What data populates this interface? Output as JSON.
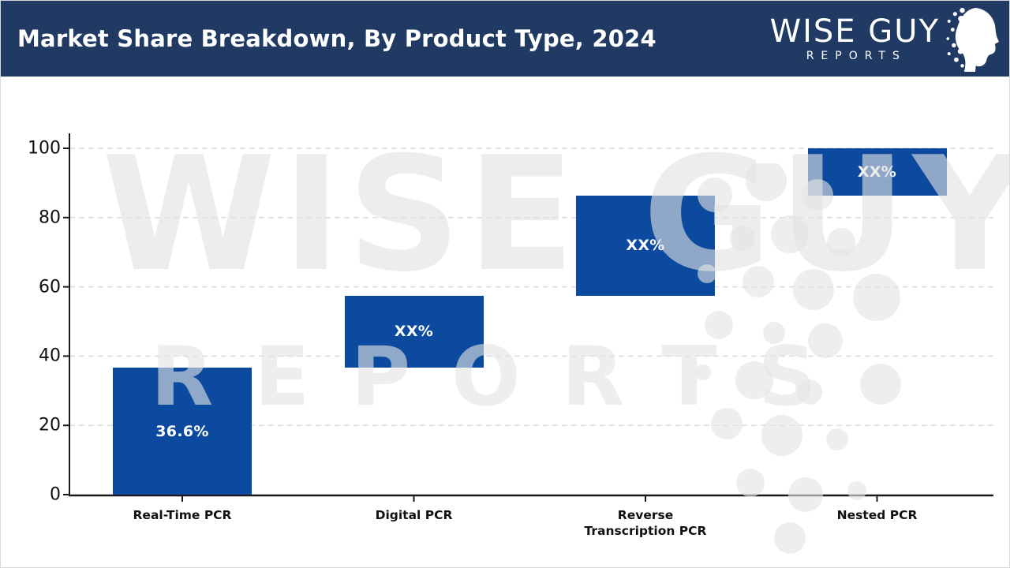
{
  "header": {
    "title": "Market Share Breakdown, By Product Type, 2024",
    "bg_color": "#213a64",
    "logo": {
      "wordmark": "WISE GUY",
      "subtext": "REPORTS"
    }
  },
  "watermark": {
    "line1": "WISE GUY",
    "line2": "REPORTS"
  },
  "chart_data": {
    "type": "bar",
    "variant": "waterfall",
    "title": "Market Share Breakdown, By Product Type, 2024",
    "categories": [
      "Real-Time PCR",
      "Digital PCR",
      "Reverse\nTranscription PCR",
      "Nested PCR"
    ],
    "segments": [
      {
        "category": "Real-Time PCR",
        "start": 0,
        "end": 36.6,
        "label": "36.6%"
      },
      {
        "category": "Digital PCR",
        "start": 36.6,
        "end": 57.5,
        "label": "XX%"
      },
      {
        "category": "Reverse Transcription PCR",
        "start": 57.5,
        "end": 86.4,
        "label": "XX%"
      },
      {
        "category": "Nested PCR",
        "start": 86.4,
        "end": 100,
        "label": "XX%"
      }
    ],
    "ylim": [
      0,
      100
    ],
    "yticks": [
      0,
      20,
      40,
      60,
      80,
      100
    ],
    "grid": "horizontal dashed",
    "legend": "none",
    "xlabel": "",
    "ylabel": "",
    "bar_color": "#0b4a9e",
    "bar_label_color": "#ffffff",
    "axis_color": "#1a1a1a",
    "grid_color": "#dcdcdc"
  }
}
